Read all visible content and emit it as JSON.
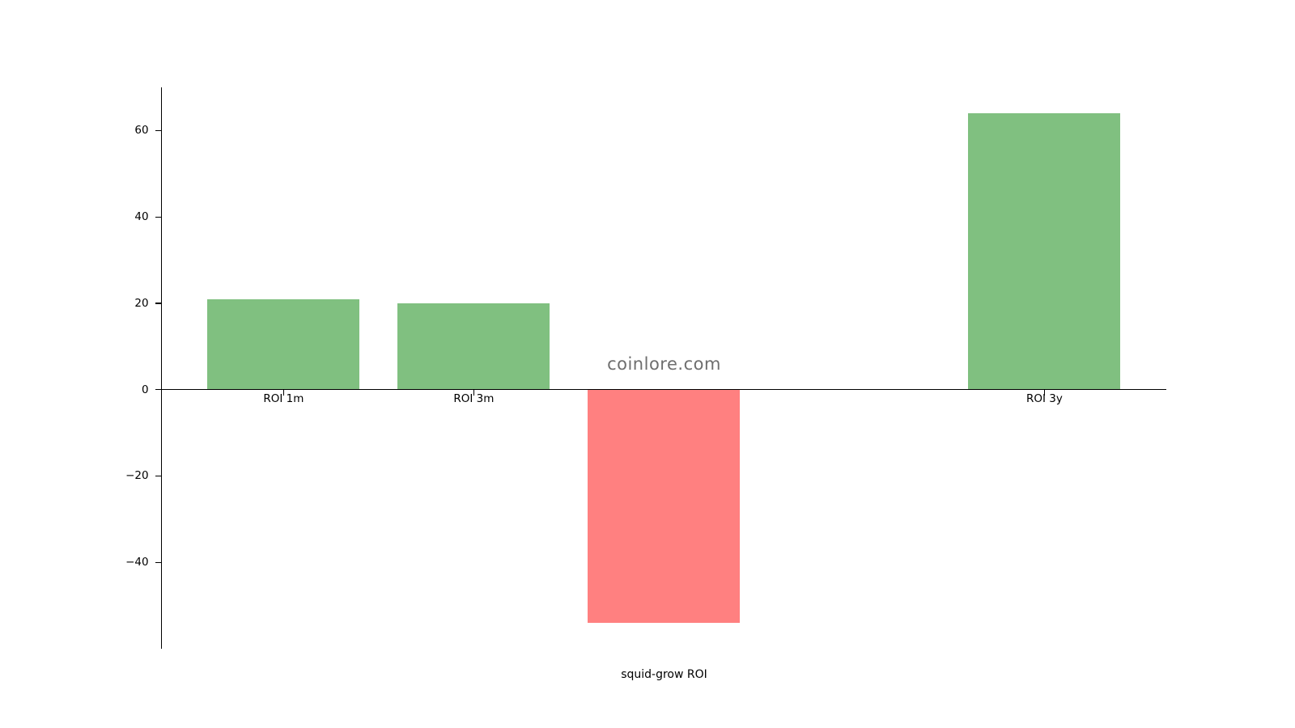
{
  "chart_data": {
    "type": "bar",
    "xlabel": "squid-grow ROI",
    "watermark": "coinlore.com",
    "background": "#ffffff",
    "axis_color": "#000000",
    "text_color": "#000000",
    "watermark_color": "#6e6e6e",
    "grid": false,
    "legend": false,
    "ylim": [
      -60,
      70
    ],
    "yticks": [
      {
        "value": -40,
        "label": "−40"
      },
      {
        "value": -20,
        "label": "−20"
      },
      {
        "value": 0,
        "label": "0"
      },
      {
        "value": 20,
        "label": "20"
      },
      {
        "value": 40,
        "label": "40"
      },
      {
        "value": 60,
        "label": "60"
      }
    ],
    "slots": 5,
    "bars": [
      {
        "label": "ROI 1m",
        "slot": 0,
        "value": 21,
        "color": "#80c080"
      },
      {
        "label": "ROI 3m",
        "slot": 1,
        "value": 20,
        "color": "#80c080"
      },
      {
        "label": "",
        "slot": 2,
        "value": -54,
        "color": "#ff8080"
      },
      {
        "label": "ROI 3y",
        "slot": 4,
        "value": 64,
        "color": "#80c080"
      }
    ],
    "colors": {
      "positive": "#80c080",
      "negative": "#ff8080"
    }
  }
}
